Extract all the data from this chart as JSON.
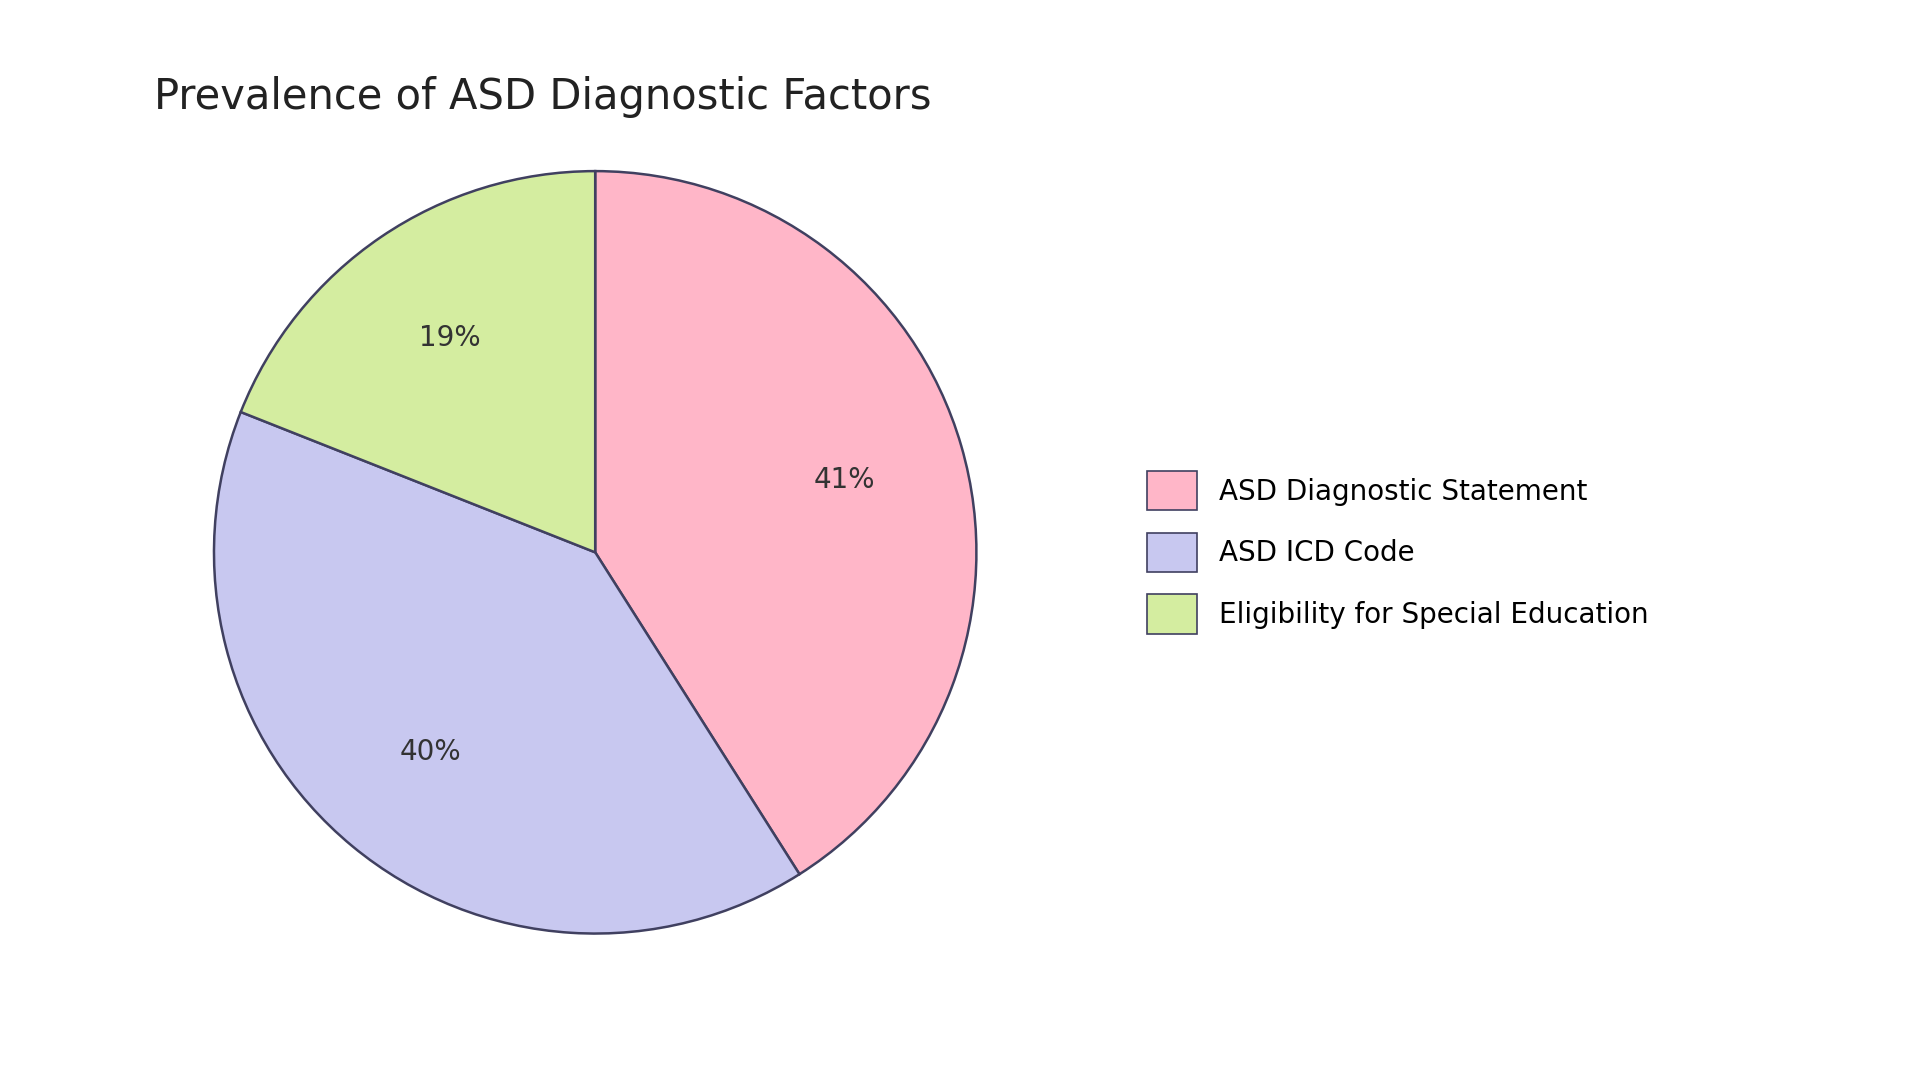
{
  "title": "Prevalence of ASD Diagnostic Factors",
  "slices": [
    41,
    40,
    19
  ],
  "labels": [
    "ASD Diagnostic Statement",
    "ASD ICD Code",
    "Eligibility for Special Education"
  ],
  "colors": [
    "#FFB6C8",
    "#C8C8F0",
    "#D4EDA0"
  ],
  "edge_color": "#404060",
  "background_color": "#FFFFFF",
  "title_fontsize": 30,
  "label_fontsize": 20,
  "legend_fontsize": 20,
  "startangle": 90
}
